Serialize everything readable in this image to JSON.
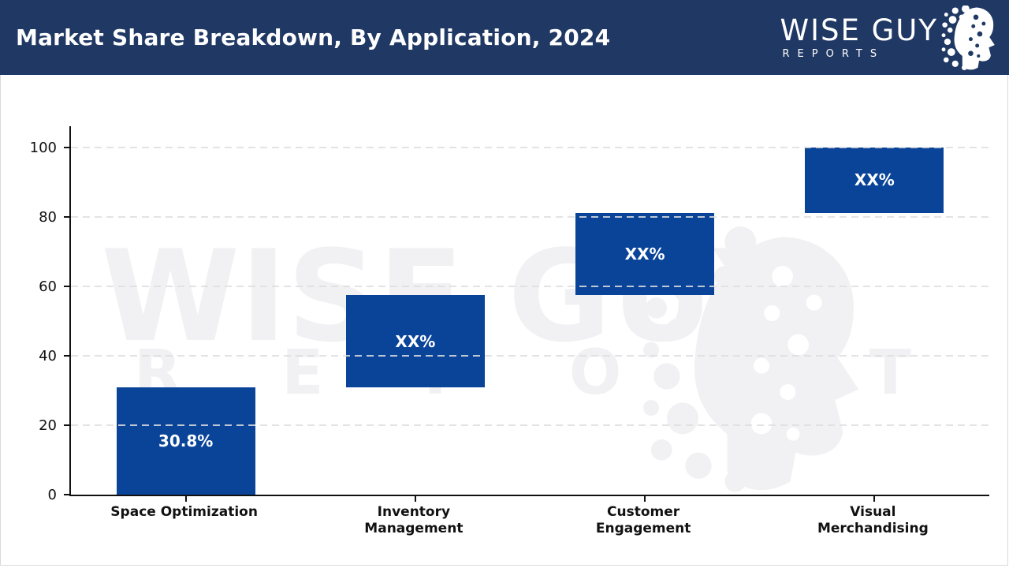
{
  "header": {
    "title": "Market Share Breakdown, By Application, 2024",
    "logo": {
      "line1": "WISE GUY",
      "line2": "REPORTS"
    }
  },
  "watermark": {
    "line1": "WISE GUY",
    "line2": "R E P O R T S"
  },
  "colors": {
    "header_bg": "#203864",
    "bar": "#0a4499",
    "grid": "#d9d9d9",
    "watermark": "#f1f1f3",
    "axis": "#111111",
    "title_text": "#ffffff"
  },
  "chart_data": {
    "type": "bar",
    "subtype": "waterfall",
    "title": "Market Share Breakdown, By Application, 2024",
    "xlabel": "",
    "ylabel": "",
    "ylim": [
      0,
      106
    ],
    "yticks": [
      0,
      20,
      40,
      60,
      80,
      100
    ],
    "grid": "dashed horizontal",
    "legend": "none",
    "categories": [
      "Space Optimization",
      "Inventory Management",
      "Customer Engagement",
      "Visual Merchandising"
    ],
    "segments": [
      {
        "category": "Space Optimization",
        "lines": [
          "Space Optimization"
        ],
        "label": "30.8%",
        "start": 0,
        "end": 30.8,
        "increment": 30.8
      },
      {
        "category": "Inventory Management",
        "lines": [
          "Inventory",
          "Management"
        ],
        "label": "XX%",
        "start": 30.8,
        "end": 57.6,
        "increment": 26.8
      },
      {
        "category": "Customer Engagement",
        "lines": [
          "Customer",
          "Engagement"
        ],
        "label": "XX%",
        "start": 57.6,
        "end": 81.2,
        "increment": 23.6
      },
      {
        "category": "Visual Merchandising",
        "lines": [
          "Visual",
          "Merchandising"
        ],
        "label": "XX%",
        "start": 81.2,
        "end": 100,
        "increment": 18.8
      }
    ]
  }
}
